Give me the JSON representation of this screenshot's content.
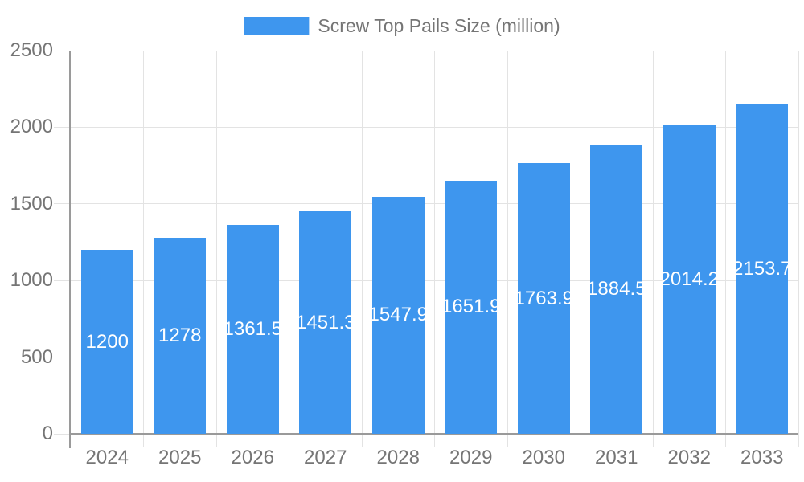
{
  "chart_data": {
    "type": "bar",
    "title": "Screw Top Pails Size (million)",
    "categories": [
      "2024",
      "2025",
      "2026",
      "2027",
      "2028",
      "2029",
      "2030",
      "2031",
      "2032",
      "2033"
    ],
    "values": [
      1200,
      1278,
      1361.5,
      1451.3,
      1547.9,
      1651.9,
      1763.9,
      1884.5,
      2014.2,
      2153.7
    ],
    "value_labels": [
      "1200",
      "1278",
      "1361.5",
      "1451.3",
      "1547.9",
      "1651.9",
      "1763.9",
      "1884.5",
      "2014.2",
      "2153.7"
    ],
    "xlabel": "",
    "ylabel": "",
    "ylim": [
      0,
      2500
    ],
    "y_ticks": [
      0,
      500,
      1000,
      1500,
      2000,
      2500
    ],
    "grid": true,
    "legend_position": "top-center",
    "colors": {
      "bar": "#3E96EE",
      "grid": "#e3e3e3",
      "axis": "#9a9a9a",
      "text": "#757575",
      "value_label": "#ffffff",
      "background": "#ffffff"
    }
  }
}
